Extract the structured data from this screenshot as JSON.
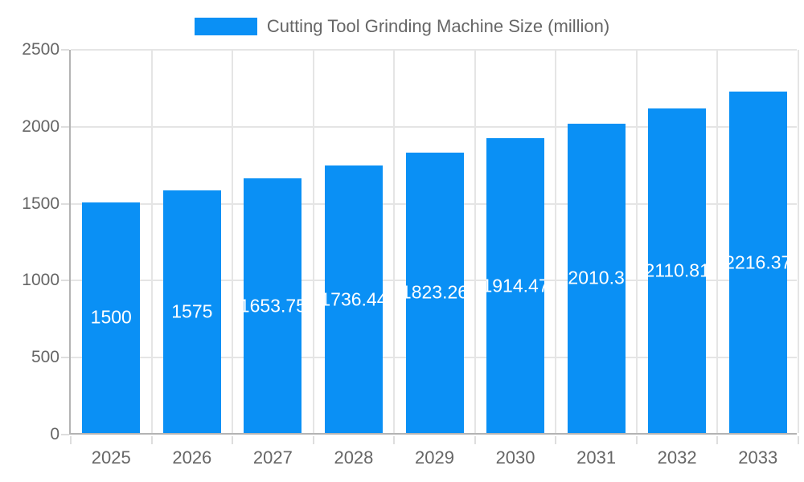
{
  "legend": {
    "label": "Cutting Tool Grinding Machine Size (million)"
  },
  "chart_data": {
    "type": "bar",
    "title": "Cutting Tool Grinding Machine Size (million)",
    "categories": [
      "2025",
      "2026",
      "2027",
      "2028",
      "2029",
      "2030",
      "2031",
      "2032",
      "2033"
    ],
    "values": [
      1500,
      1575,
      1653.75,
      1736.44,
      1823.26,
      1914.47,
      2010.3,
      2110.81,
      2216.37
    ],
    "bar_labels": [
      "1500",
      "1575",
      "1653.75",
      "1736.44",
      "1823.26",
      "1914.47",
      "2010.3",
      "2110.81",
      "2216.37"
    ],
    "xlabel": "",
    "ylabel": "",
    "ylim": [
      0,
      2500
    ],
    "yticks": [
      0,
      500,
      1000,
      1500,
      2000,
      2500
    ],
    "ytick_labels": [
      "0",
      "500",
      "1000",
      "1500",
      "2000",
      "2500"
    ],
    "grid": true,
    "legend_position": "top-center",
    "bar_color": "#0a90f5",
    "bar_label_color": "#ffffff",
    "axis_text_color": "#666666",
    "gridline_color": "#e5e5e5",
    "axis_line_color": "#b3b3b3",
    "background_color": "#ffffff"
  }
}
